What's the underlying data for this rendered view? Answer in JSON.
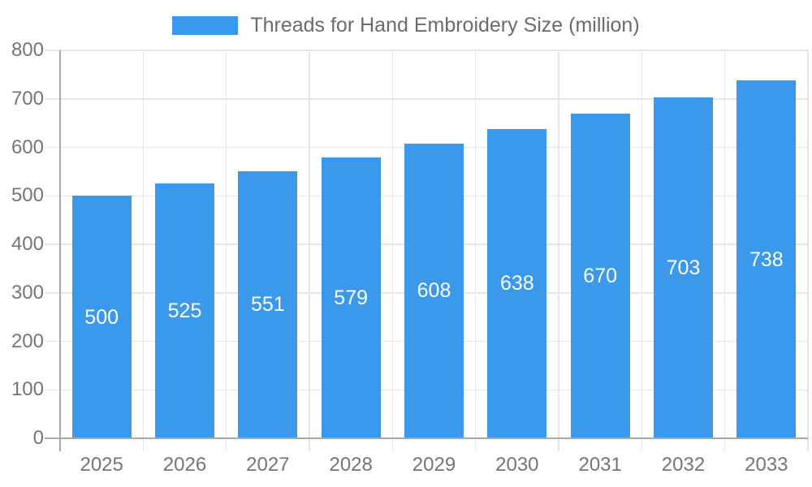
{
  "chart_data": {
    "type": "bar",
    "title": "Threads for Hand Embroidery Size (million)",
    "categories": [
      "2025",
      "2026",
      "2027",
      "2028",
      "2029",
      "2030",
      "2031",
      "2032",
      "2033"
    ],
    "values": [
      500,
      525,
      551,
      579,
      608,
      638,
      670,
      703,
      738
    ],
    "xlabel": "",
    "ylabel": "",
    "ylim": [
      0,
      800
    ],
    "ytick_interval": 100,
    "grid": true,
    "legend_position": "top",
    "value_labels": "inside-bar-centered",
    "colors": {
      "bar": "#3b99ec",
      "grid": "#e6e6e6",
      "axis": "#a9a9a9",
      "axis_text": "#757575",
      "title_text": "#6b6b6b",
      "value_label_text": "#ffffff",
      "background": "#ffffff"
    }
  }
}
